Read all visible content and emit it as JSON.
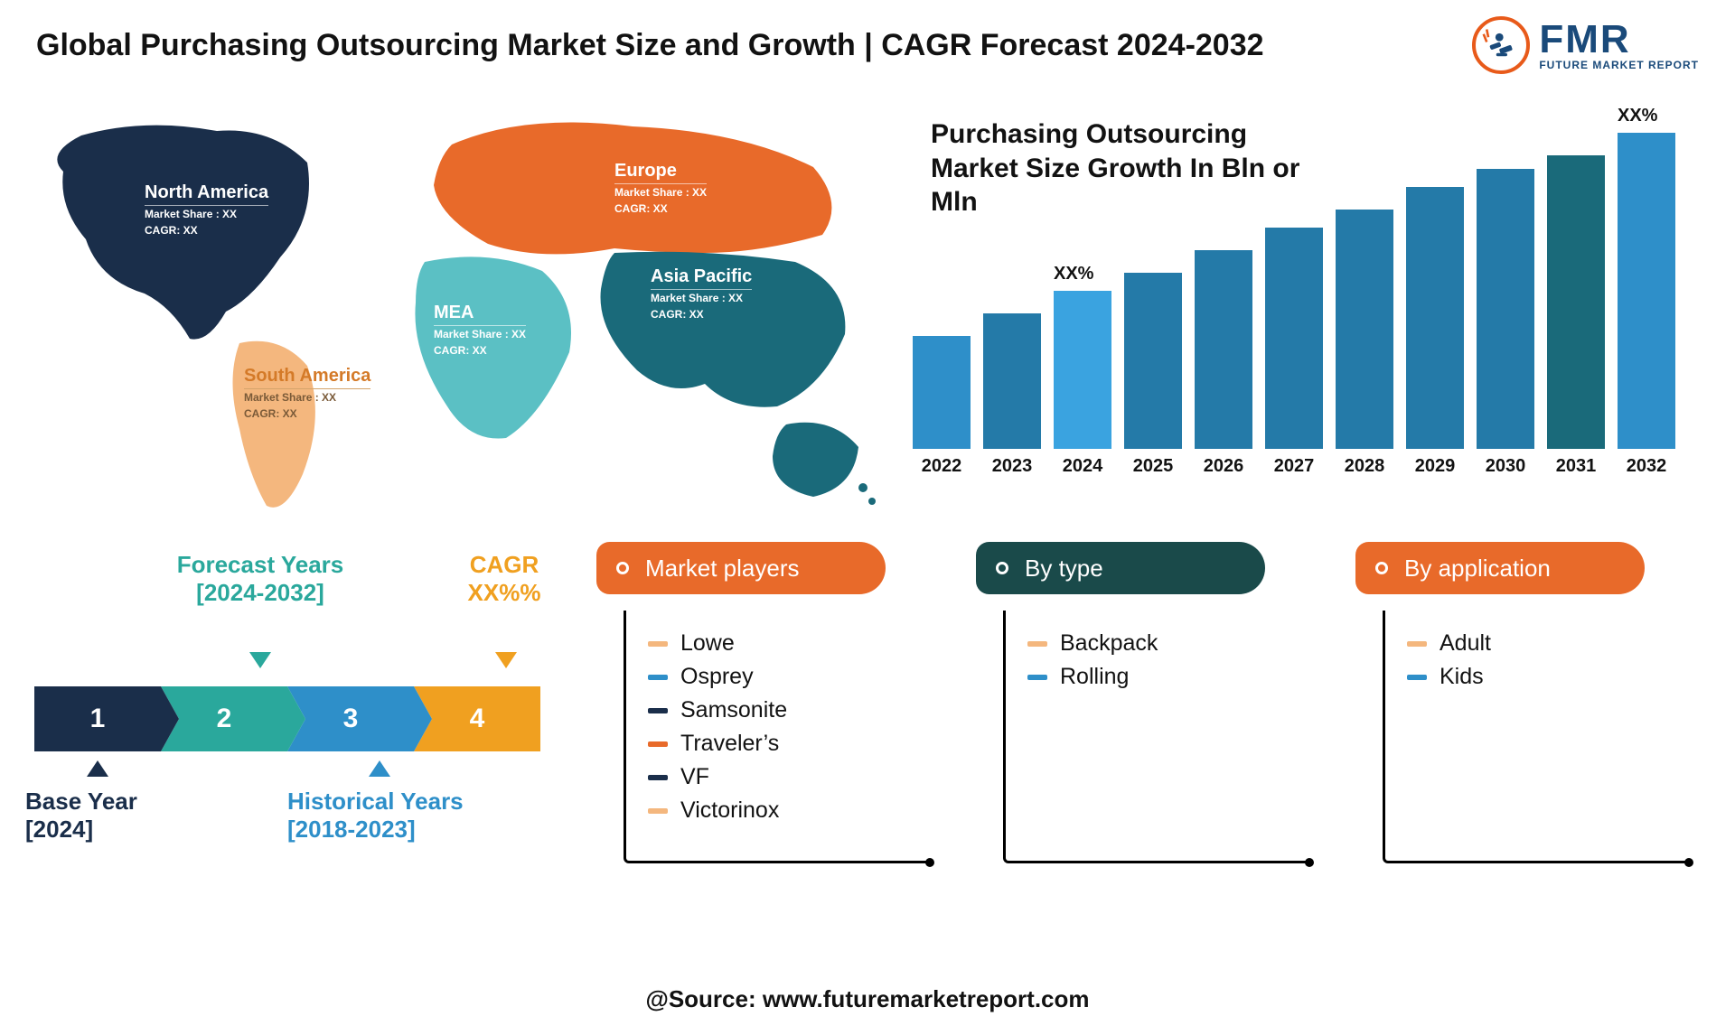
{
  "title": "Global Purchasing Outsourcing Market Size and Growth | CAGR Forecast 2024-2032",
  "logo": {
    "fmr": "FMR",
    "sub": "FUTURE MARKET REPORT",
    "accent": "#e85a1a",
    "text_color": "#1a4a7a"
  },
  "source": "@Source: www.futuremarketreport.com",
  "map": {
    "regions": [
      {
        "key": "north_america",
        "name": "North America",
        "share": "Market Share : XX",
        "cagr": "CAGR: XX",
        "color": "#1a2e4a"
      },
      {
        "key": "south_america",
        "name": "South America",
        "share": "Market Share : XX",
        "cagr": "CAGR: XX",
        "color": "#f4b77e"
      },
      {
        "key": "europe",
        "name": "Europe",
        "share": "Market Share : XX",
        "cagr": "CAGR: XX",
        "color": "#e86a2a"
      },
      {
        "key": "mea",
        "name": "MEA",
        "share": "Market Share : XX",
        "cagr": "CAGR: XX",
        "color": "#5bc0c4"
      },
      {
        "key": "asia_pacific",
        "name": "Asia Pacific",
        "share": "Market Share : XX",
        "cagr": "CAGR: XX",
        "color": "#1a6a7a"
      }
    ]
  },
  "chart": {
    "type": "bar",
    "title": "Purchasing Outsourcing Market Size Growth In Bln or Mln",
    "years": [
      "2022",
      "2023",
      "2024",
      "2025",
      "2026",
      "2027",
      "2028",
      "2029",
      "2030",
      "2031",
      "2032"
    ],
    "heights": [
      125,
      150,
      175,
      195,
      220,
      245,
      265,
      290,
      310,
      325,
      350
    ],
    "colors": [
      "#2e8fc9",
      "#247aa8",
      "#3aa3e0",
      "#247aa8",
      "#247aa8",
      "#247aa8",
      "#247aa8",
      "#247aa8",
      "#247aa8",
      "#1a6a7a",
      "#2e8fc9"
    ],
    "value_labels": [
      {
        "index": 2,
        "text": "XX%"
      },
      {
        "index": 10,
        "text": "XX%"
      }
    ],
    "label_fontsize": 20,
    "title_fontsize": 30,
    "background_color": "#ffffff"
  },
  "timeline": {
    "forecast": {
      "label": "Forecast Years",
      "range": "[2024-2032]",
      "color": "#2aa89c"
    },
    "cagr": {
      "label": "CAGR",
      "value": "XX%%",
      "color": "#f0a020"
    },
    "base": {
      "label": "Base Year",
      "range": "[2024]",
      "color": "#1a2e4a"
    },
    "historical": {
      "label": "Historical Years",
      "range": "[2018-2023]",
      "color": "#2e8fc9"
    },
    "segments": [
      {
        "n": "1",
        "color": "#1a2e4a"
      },
      {
        "n": "2",
        "color": "#2aa89c"
      },
      {
        "n": "3",
        "color": "#2e8fc9"
      },
      {
        "n": "4",
        "color": "#f0a020"
      }
    ]
  },
  "cats": [
    {
      "key": "players",
      "title": "Market players",
      "pill_color": "#e86a2a",
      "items": [
        {
          "text": "Lowe",
          "bullet": "#f4b77e"
        },
        {
          "text": "Osprey",
          "bullet": "#2e8fc9"
        },
        {
          "text": "Samsonite",
          "bullet": "#1a2e4a"
        },
        {
          "text": "Traveler’s",
          "bullet": "#e86a2a"
        },
        {
          "text": "VF",
          "bullet": "#1a2e4a"
        },
        {
          "text": "Victorinox",
          "bullet": "#f4b77e"
        }
      ]
    },
    {
      "key": "type",
      "title": "By type",
      "pill_color": "#1a4a4a",
      "items": [
        {
          "text": "Backpack",
          "bullet": "#f4b77e"
        },
        {
          "text": "Rolling",
          "bullet": "#2e8fc9"
        }
      ]
    },
    {
      "key": "application",
      "title": "By application",
      "pill_color": "#e86a2a",
      "items": [
        {
          "text": "Adult",
          "bullet": "#f4b77e"
        },
        {
          "text": "Kids",
          "bullet": "#2e8fc9"
        }
      ]
    }
  ]
}
